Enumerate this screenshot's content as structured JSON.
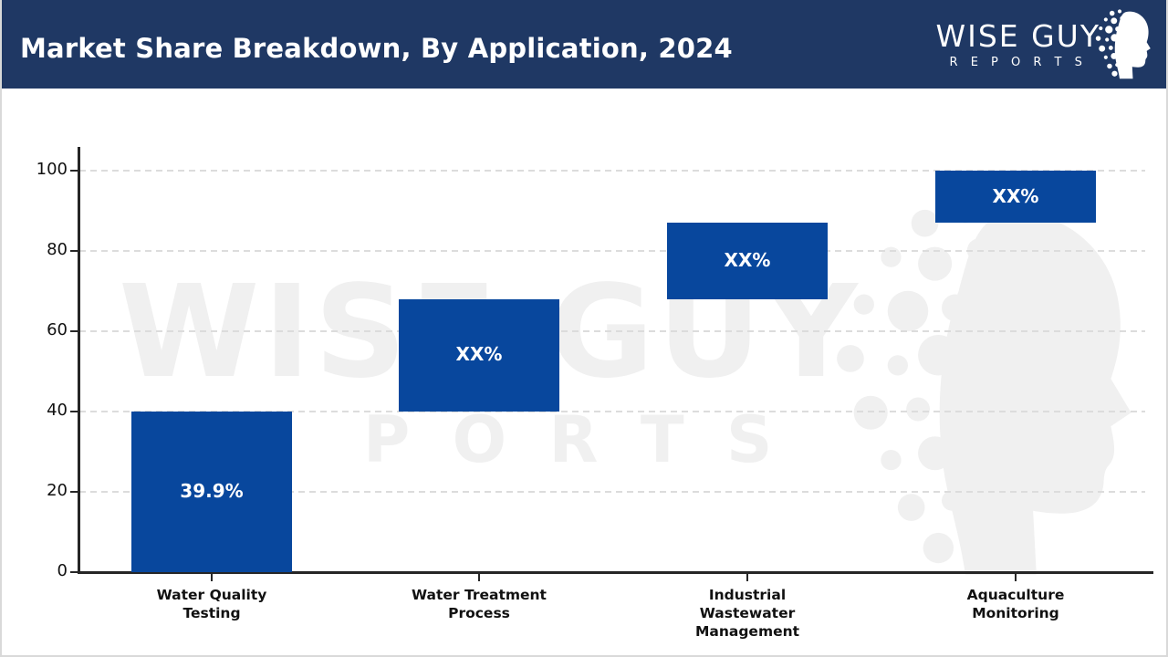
{
  "header": {
    "title": "Market Share Breakdown, By Application, 2024",
    "logo": {
      "brand_top": "WISE GUY",
      "brand_bottom": "R E P O R T S",
      "face_icon": "face-profile-dots"
    }
  },
  "watermark": {
    "line1": "WISE GUY",
    "line2": "P O R T S"
  },
  "colors": {
    "header_bg": "#1f3864",
    "bar": "#08479d",
    "watermark": "#f0f0f0",
    "grid": "#dcdcdc",
    "axis": "#262626",
    "frame_border": "#d9d9d9",
    "bar_label_text": "#ffffff"
  },
  "chart_data": {
    "type": "bar",
    "subtype": "waterfall-stacked-breakdown",
    "title": "Market Share Breakdown, By Application, 2024",
    "categories": [
      "Water Quality Testing",
      "Water Treatment Process",
      "Industrial Wastewater Management",
      "Aquaculture Monitoring"
    ],
    "category_lines": [
      [
        "Water Quality",
        "Testing"
      ],
      [
        "Water Treatment",
        "Process"
      ],
      [
        "Industrial",
        "Wastewater",
        "Management"
      ],
      [
        "Aquaculture",
        "Monitoring"
      ]
    ],
    "segments": [
      {
        "category": "Water Quality Testing",
        "start": 0,
        "end": 40,
        "label": "39.9%"
      },
      {
        "category": "Water Treatment Process",
        "start": 40,
        "end": 68,
        "label": "XX%"
      },
      {
        "category": "Industrial Wastewater Management",
        "start": 68,
        "end": 87,
        "label": "XX%"
      },
      {
        "category": "Aquaculture Monitoring",
        "start": 87,
        "end": 100,
        "label": "XX%"
      }
    ],
    "xlabel": "",
    "ylabel": "",
    "ylim": [
      0,
      100
    ],
    "yticks": [
      0,
      20,
      40,
      60,
      80,
      100
    ],
    "grid": "horizontal-dashed",
    "legend": "none"
  }
}
